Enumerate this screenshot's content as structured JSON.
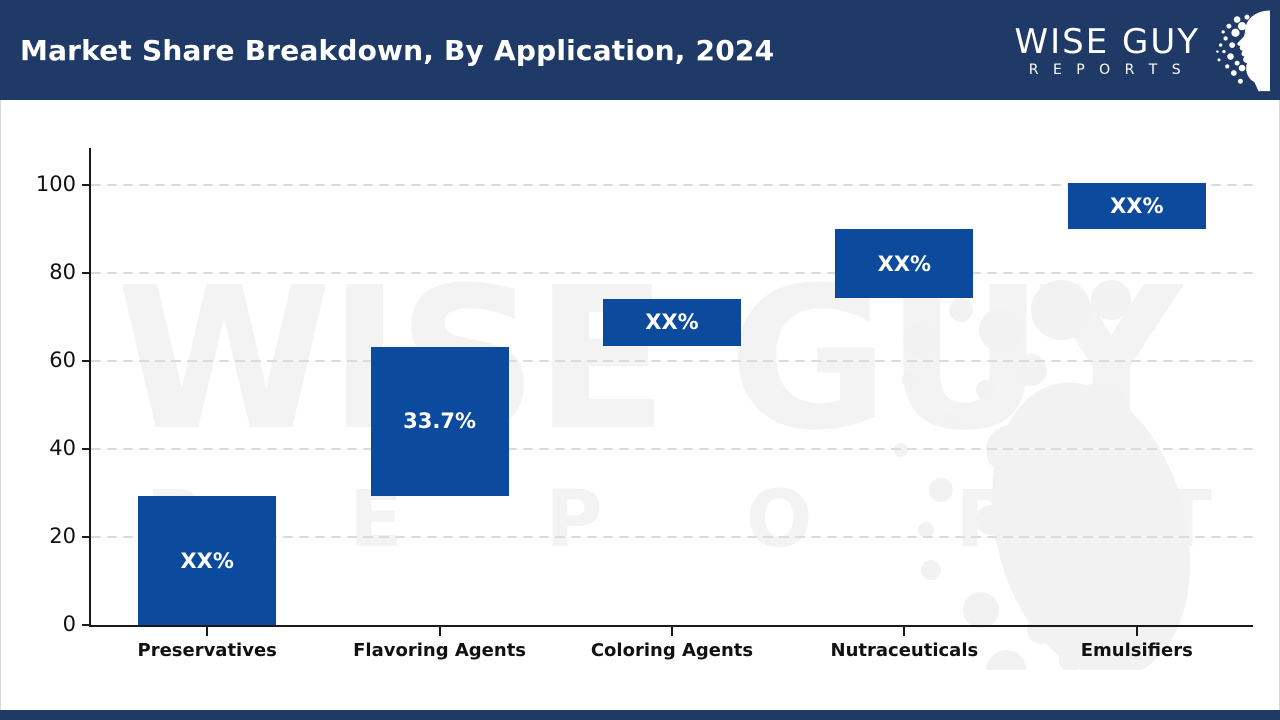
{
  "header": {
    "title": "Market Share Breakdown, By Application, 2024",
    "background_color": "#203a67",
    "brand": {
      "wordmark_line1": "WISE GUY",
      "wordmark_line2": "R E P O R T S"
    }
  },
  "watermark": {
    "line1": "WISE GUY",
    "line2": "R E P O R T S"
  },
  "chart_data": {
    "type": "bar",
    "subtype": "floating-waterfall",
    "title": "Market Share Breakdown, By Application, 2024",
    "categories": [
      "Preservatives",
      "Flavoring Agents",
      "Coloring Agents",
      "Nutraceuticals",
      "Emulsifiers"
    ],
    "segments": [
      {
        "category": "Preservatives",
        "start": 0,
        "end": 29.3,
        "label": "XX%"
      },
      {
        "category": "Flavoring Agents",
        "start": 29.4,
        "end": 63.1,
        "label": "33.7%"
      },
      {
        "category": "Coloring Agents",
        "start": 63.3,
        "end": 74.2,
        "label": "XX%"
      },
      {
        "category": "Nutraceuticals",
        "start": 74.4,
        "end": 89.9,
        "label": "XX%"
      },
      {
        "category": "Emulsifiers",
        "start": 90.1,
        "end": 100.4,
        "label": "XX%"
      }
    ],
    "xlabel": "",
    "ylabel": "",
    "ylim": [
      0,
      108
    ],
    "yticks": [
      0,
      20,
      40,
      60,
      80,
      100
    ],
    "grid": "horizontal-dashed",
    "legend": "none",
    "bar_color": "#0c4a9e",
    "bar_label_color": "#ffffff",
    "axis_color": "#1a1a1a",
    "gridline_color": "#dcdcdc"
  },
  "footer": {
    "background_color": "#203a67"
  }
}
